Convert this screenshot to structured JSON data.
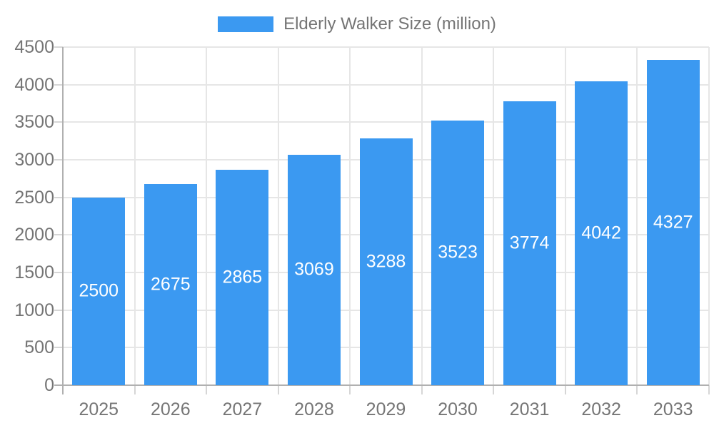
{
  "chart_data": {
    "type": "bar",
    "title": "Elderly Walker Size (million)",
    "legend": {
      "label": "Elderly Walker Size (million)",
      "position": "top"
    },
    "categories": [
      "2025",
      "2026",
      "2027",
      "2028",
      "2029",
      "2030",
      "2031",
      "2032",
      "2033"
    ],
    "series": [
      {
        "name": "Elderly Walker Size (million)",
        "values": [
          2500,
          2675,
          2865,
          3069,
          3288,
          3523,
          3774,
          4042,
          4327
        ]
      }
    ],
    "value_labels": {
      "visible": true,
      "position": "inside-center"
    },
    "xlabel": "",
    "ylabel": "",
    "ylim": [
      0,
      4500
    ],
    "ytick_step": 500,
    "yticks": [
      "0",
      "500",
      "1000",
      "1500",
      "2000",
      "2500",
      "3000",
      "3500",
      "4000",
      "4500"
    ],
    "grid": true,
    "legend_visible": true,
    "colors": {
      "bar": "#3B99F1",
      "value_label_text": "#FFFFFF",
      "axis_text": "#757575",
      "gridline": "#E6E6E6",
      "tick": "#D6D6D6",
      "axis_line": "#B0B0B0",
      "background": "#FFFFFF"
    }
  }
}
